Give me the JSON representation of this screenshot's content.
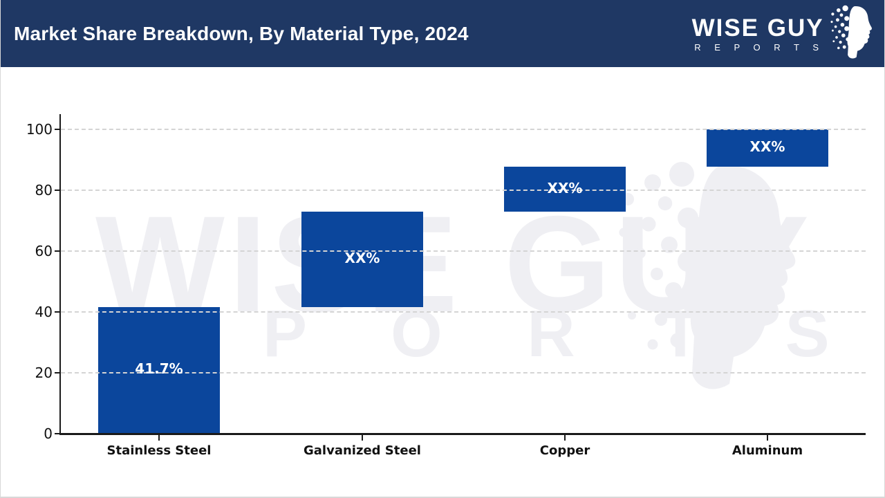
{
  "header": {
    "title": "Market Share Breakdown, By Material Type, 2024",
    "bg_color": "#1f3864",
    "logo": {
      "line1": "WISE GUY",
      "line2": "R E P O R T S"
    }
  },
  "watermark": {
    "line1": "WISE GUY",
    "line2": "P O R T S"
  },
  "chart_data": {
    "type": "bar",
    "subtype": "waterfall",
    "title": "Market Share Breakdown, By Material Type, 2024",
    "categories": [
      "Stainless Steel",
      "Galvanized Steel",
      "Copper",
      "Aluminum"
    ],
    "segments": [
      {
        "category": "Stainless Steel",
        "start": 0,
        "end": 41.7,
        "label": "41.7%"
      },
      {
        "category": "Galvanized Steel",
        "start": 41.7,
        "end": 72.9,
        "label": "XX%"
      },
      {
        "category": "Copper",
        "start": 72.9,
        "end": 87.7,
        "label": "XX%"
      },
      {
        "category": "Aluminum",
        "start": 87.7,
        "end": 100,
        "label": "XX%"
      }
    ],
    "y_ticks": [
      0,
      20,
      40,
      60,
      80,
      100
    ],
    "ylim": [
      0,
      105
    ],
    "xlabel": "",
    "ylabel": "",
    "grid": "horizontal-dashed",
    "legend": "none",
    "bar_color": "#0b469c",
    "bar_label_color": "#ffffff"
  },
  "colors": {
    "header_bg": "#1f3864",
    "axis": "#1a1a1a",
    "grid": "#d4d4d4",
    "watermark": "#efeff3"
  }
}
